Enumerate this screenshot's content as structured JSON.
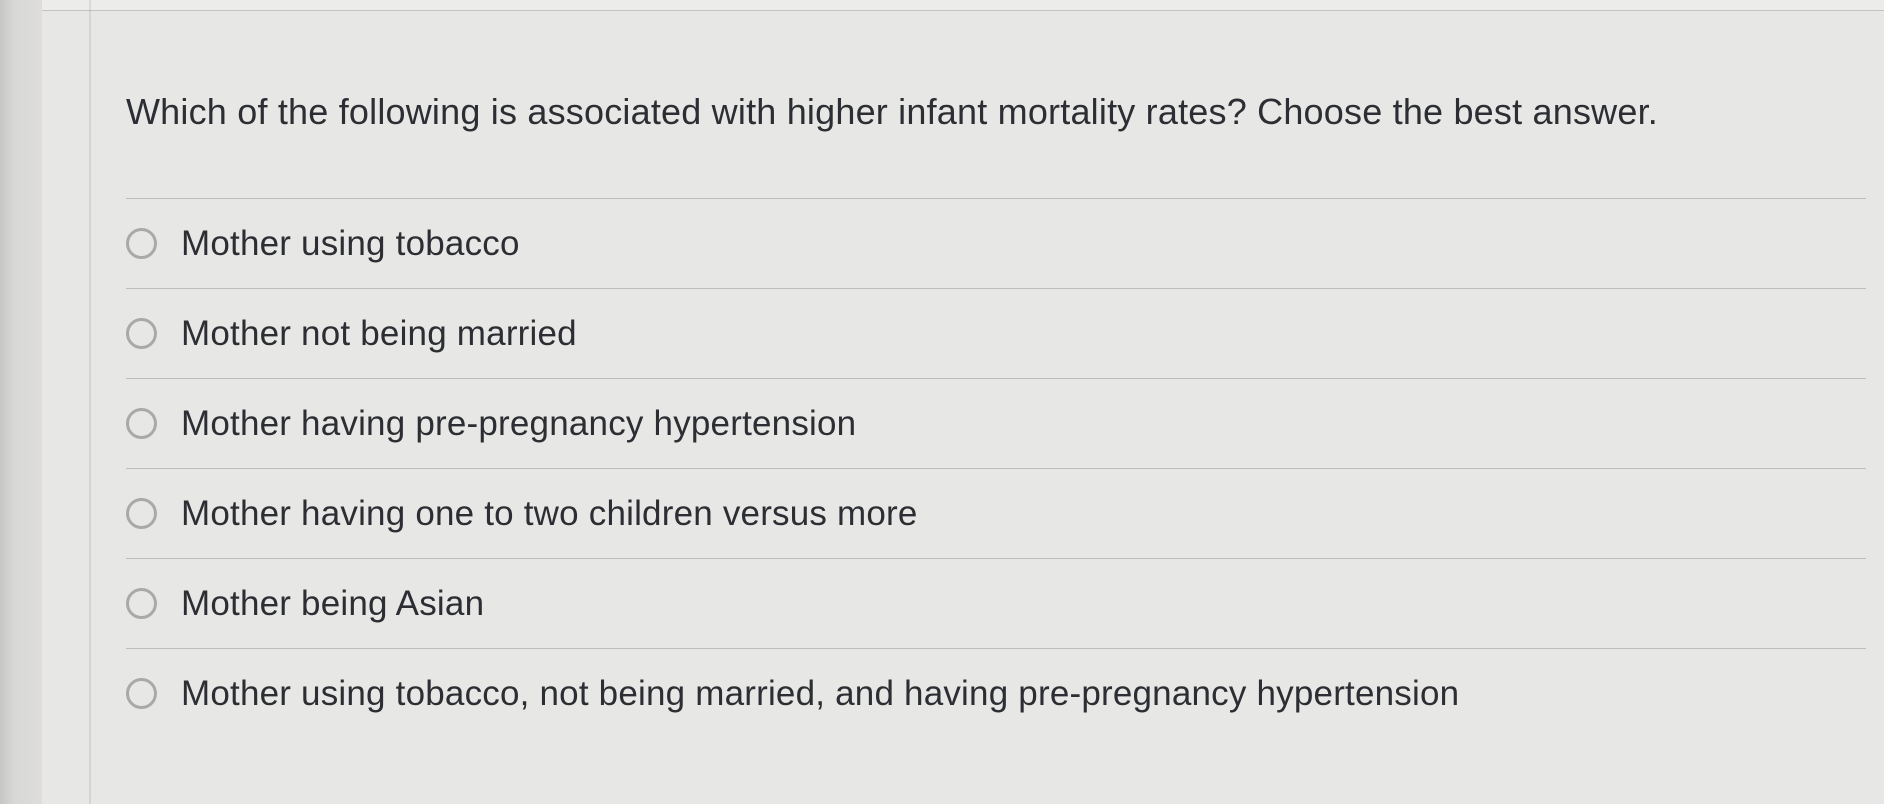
{
  "quiz": {
    "question": "Which of the following is associated with higher infant mortality rates? Choose the best answer.",
    "options": [
      "Mother using tobacco",
      "Mother not being married",
      "Mother having pre-pregnancy hypertension",
      "Mother having one to two children versus more",
      "Mother being Asian",
      "Mother using tobacco, not being married, and having pre-pregnancy hypertension"
    ]
  },
  "colors": {
    "background": "#e7e7e5",
    "text": "#2c2e33",
    "divider": "#bcbcba",
    "radio_border": "#a9a9a7"
  }
}
